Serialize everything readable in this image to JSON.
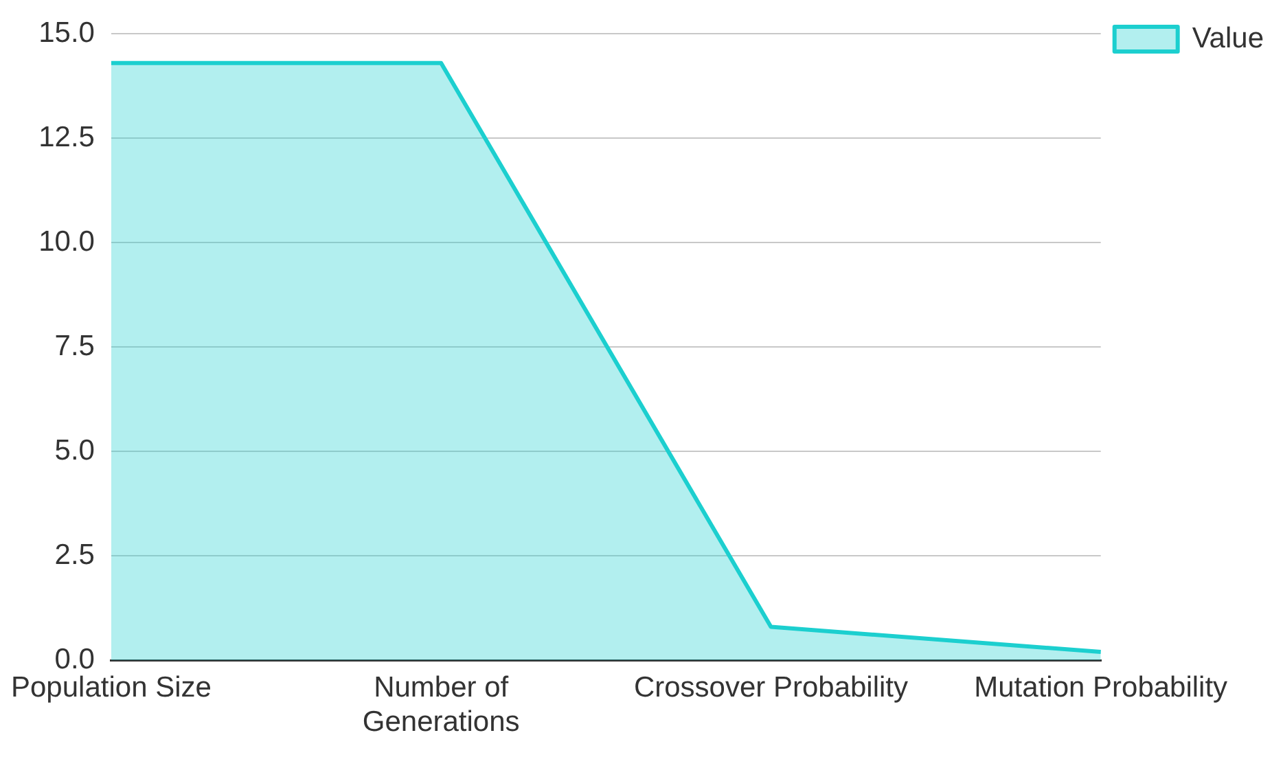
{
  "chart_data": {
    "type": "area",
    "categories": [
      "Population Size",
      "Number of Generations",
      "Crossover Probability",
      "Mutation Probability"
    ],
    "series": [
      {
        "name": "Value",
        "color": "#1ccfcf",
        "values": [
          14.3,
          14.3,
          0.8,
          0.2
        ]
      }
    ],
    "ylim": [
      0,
      15
    ],
    "yticks": [
      {
        "value": 0,
        "label": "0.0"
      },
      {
        "value": 2.5,
        "label": "2.5"
      },
      {
        "value": 5,
        "label": "5.0"
      },
      {
        "value": 7.5,
        "label": "7.5"
      },
      {
        "value": 10,
        "label": "10.0"
      },
      {
        "value": 12.5,
        "label": "12.5"
      },
      {
        "value": 15,
        "label": "15.0"
      }
    ],
    "grid": "y",
    "legend": "top right"
  }
}
